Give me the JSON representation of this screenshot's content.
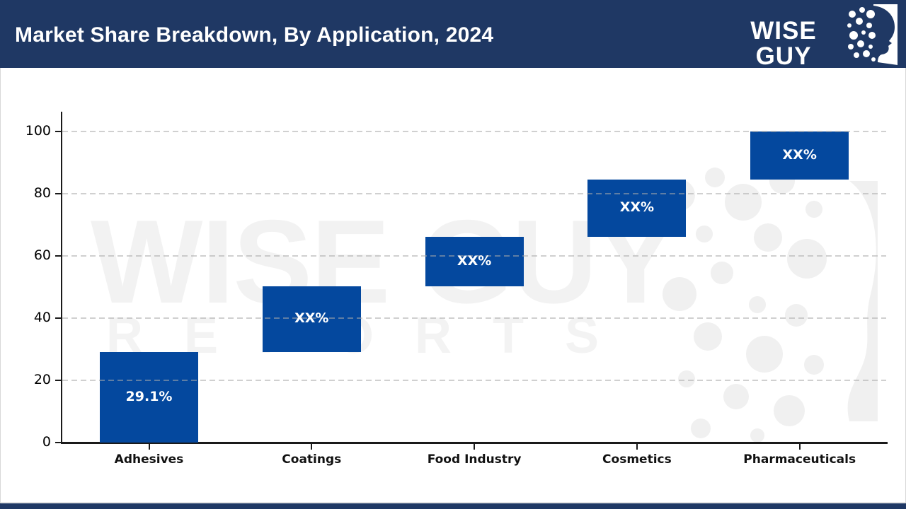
{
  "header": {
    "title": "Market Share Breakdown, By Application, 2024"
  },
  "logo": {
    "line1": "WISE GUY",
    "line2": "REPORTS"
  },
  "watermark": {
    "line1": "WISE GUY",
    "line2": "REPORTS"
  },
  "colors": {
    "header_bg": "#1f3864",
    "footer_bg": "#1f3864",
    "bar_color": "#04489e",
    "bar_label_color": "#ffffff",
    "grid_color": "#d9d9d9",
    "axis_color": "#1a1a1a",
    "watermark_color": "#f2f2f2"
  },
  "chart_data": {
    "type": "bar",
    "subtype": "waterfall",
    "title": "Market Share Breakdown, By Application, 2024",
    "xlabel": "",
    "ylabel": "",
    "categories": [
      "Adhesives",
      "Coatings",
      "Food Industry",
      "Cosmetics",
      "Pharmaceuticals"
    ],
    "segments": [
      {
        "category": "Adhesives",
        "start": 0,
        "end": 29.1,
        "label": "29.1%"
      },
      {
        "category": "Coatings",
        "start": 29.1,
        "end": 50.3,
        "label": "XX%"
      },
      {
        "category": "Food Industry",
        "start": 50.3,
        "end": 66.2,
        "label": "XX%"
      },
      {
        "category": "Cosmetics",
        "start": 66.2,
        "end": 84.6,
        "label": "XX%"
      },
      {
        "category": "Pharmaceuticals",
        "start": 84.6,
        "end": 100,
        "label": "XX%"
      }
    ],
    "yticks": [
      0,
      20,
      40,
      60,
      80,
      100
    ],
    "ylim": [
      0,
      106
    ],
    "grid": "horizontal-dashed",
    "legend": "none",
    "bar_color": "#04489e"
  }
}
